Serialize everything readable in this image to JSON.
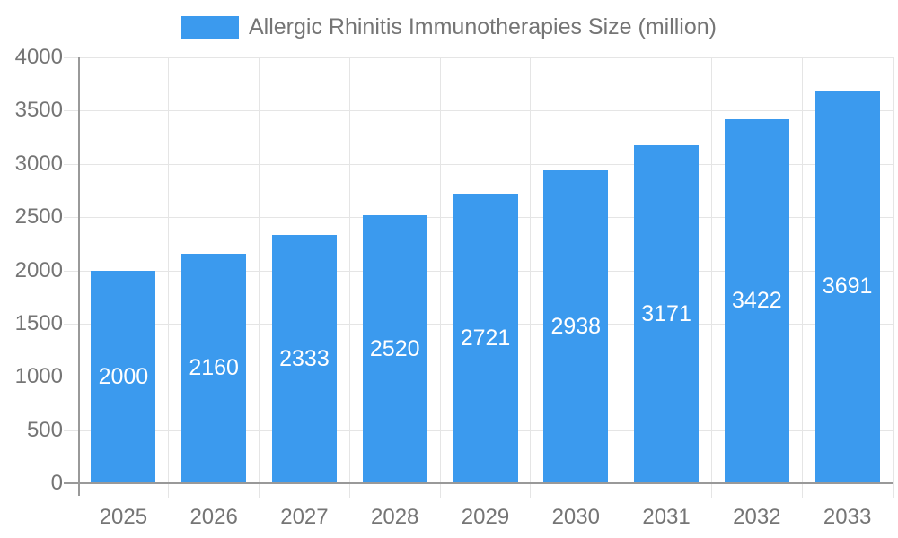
{
  "legend": {
    "label": "Allergic Rhinitis Immunotherapies Size (million)"
  },
  "colors": {
    "bar": "#3b9aee",
    "grid": "#e5e5e5",
    "axis": "#999999",
    "tick_text": "#757575",
    "value_text": "#ffffff",
    "background": "#ffffff"
  },
  "chart_data": {
    "type": "bar",
    "title": "Allergic Rhinitis Immunotherapies Size (million)",
    "series_name": "Allergic Rhinitis Immunotherapies Size (million)",
    "categories": [
      "2025",
      "2026",
      "2027",
      "2028",
      "2029",
      "2030",
      "2031",
      "2032",
      "2033"
    ],
    "values": [
      2000,
      2160,
      2333,
      2520,
      2721,
      2938,
      3171,
      3422,
      3691
    ],
    "xlabel": "",
    "ylabel": "",
    "ylim": [
      0,
      4000
    ],
    "yticks": [
      0,
      500,
      1000,
      1500,
      2000,
      2500,
      3000,
      3500,
      4000
    ],
    "grid": true,
    "legend_position": "top",
    "value_labels": "inside-center"
  }
}
